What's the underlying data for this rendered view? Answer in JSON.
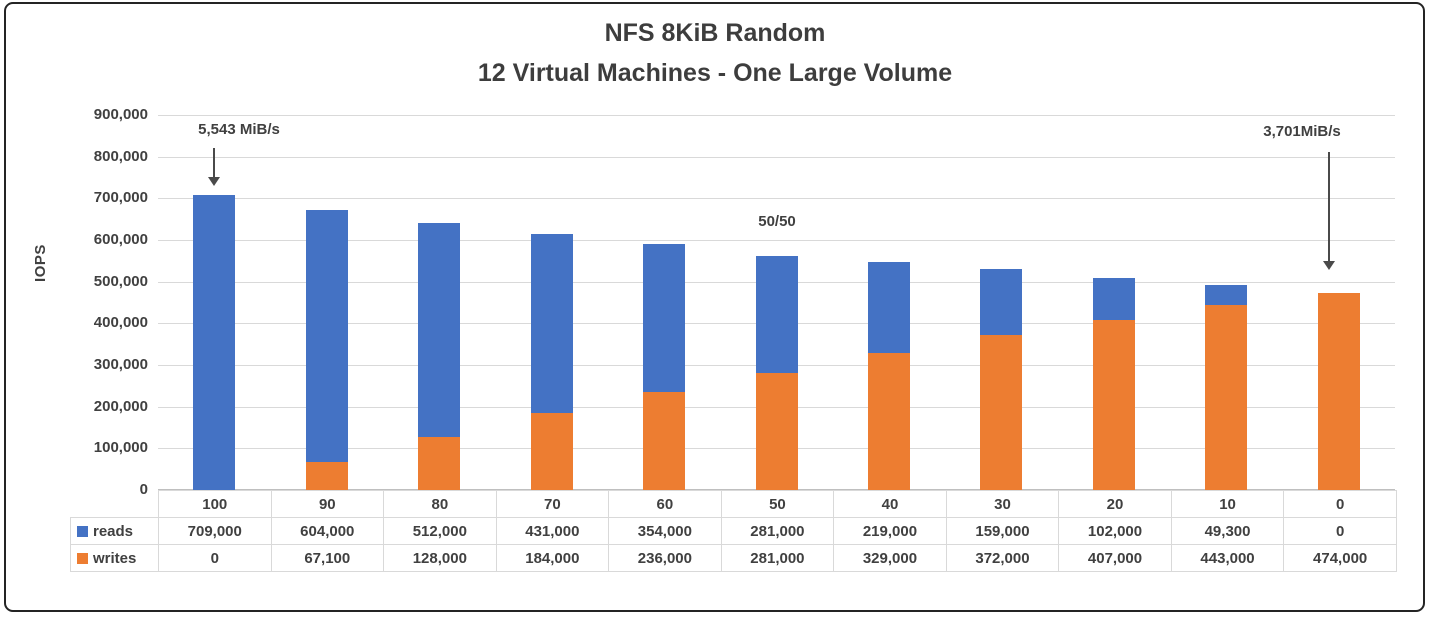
{
  "title": {
    "line1": "NFS 8KiB Random",
    "line2": "12 Virtual Machines - One Large Volume"
  },
  "chart_data": {
    "type": "bar",
    "stacked": true,
    "title": "NFS 8KiB Random",
    "subtitle": "12 Virtual Machines - One Large Volume",
    "xlabel": "",
    "ylabel": "IOPS",
    "ylim": [
      0,
      900000
    ],
    "ytick_step": 100000,
    "ytick_labels": [
      "900,000",
      "800,000",
      "700,000",
      "600,000",
      "500,000",
      "400,000",
      "300,000",
      "200,000",
      "100,000",
      "0"
    ],
    "grid": true,
    "legend_position": "data-table-left",
    "categories": [
      "100",
      "90",
      "80",
      "70",
      "60",
      "50",
      "40",
      "30",
      "20",
      "10",
      "0"
    ],
    "series": [
      {
        "name": "reads",
        "color": "#4472C4",
        "values": [
          709000,
          604000,
          512000,
          431000,
          354000,
          281000,
          219000,
          159000,
          102000,
          49300,
          0
        ]
      },
      {
        "name": "writes",
        "color": "#ED7D31",
        "values": [
          0,
          67100,
          128000,
          184000,
          236000,
          281000,
          329000,
          372000,
          407000,
          443000,
          474000
        ]
      }
    ],
    "stack_bottom_to_top": [
      "writes",
      "reads"
    ],
    "annotations": [
      {
        "text": "5,543 MiB/s",
        "target_category": "100"
      },
      {
        "text": "50/50",
        "target_category": "50"
      },
      {
        "text": "3,701MiB/s",
        "target_category": "0"
      }
    ]
  },
  "table": {
    "header": [
      "100",
      "90",
      "80",
      "70",
      "60",
      "50",
      "40",
      "30",
      "20",
      "10",
      "0"
    ],
    "rows": [
      {
        "label": "reads",
        "key_color": "#4472C4",
        "values": [
          "709,000",
          "604,000",
          "512,000",
          "431,000",
          "354,000",
          "281,000",
          "219,000",
          "159,000",
          "102,000",
          "49,300",
          "0"
        ]
      },
      {
        "label": "writes",
        "key_color": "#ED7D31",
        "values": [
          "0",
          "67,100",
          "128,000",
          "184,000",
          "236,000",
          "281,000",
          "329,000",
          "372,000",
          "407,000",
          "443,000",
          "474,000"
        ]
      }
    ]
  },
  "colors": {
    "reads": "#4472C4",
    "writes": "#ED7D31",
    "text": "#404040",
    "gridline": "#D9D9D9",
    "frame_border": "#242424"
  }
}
